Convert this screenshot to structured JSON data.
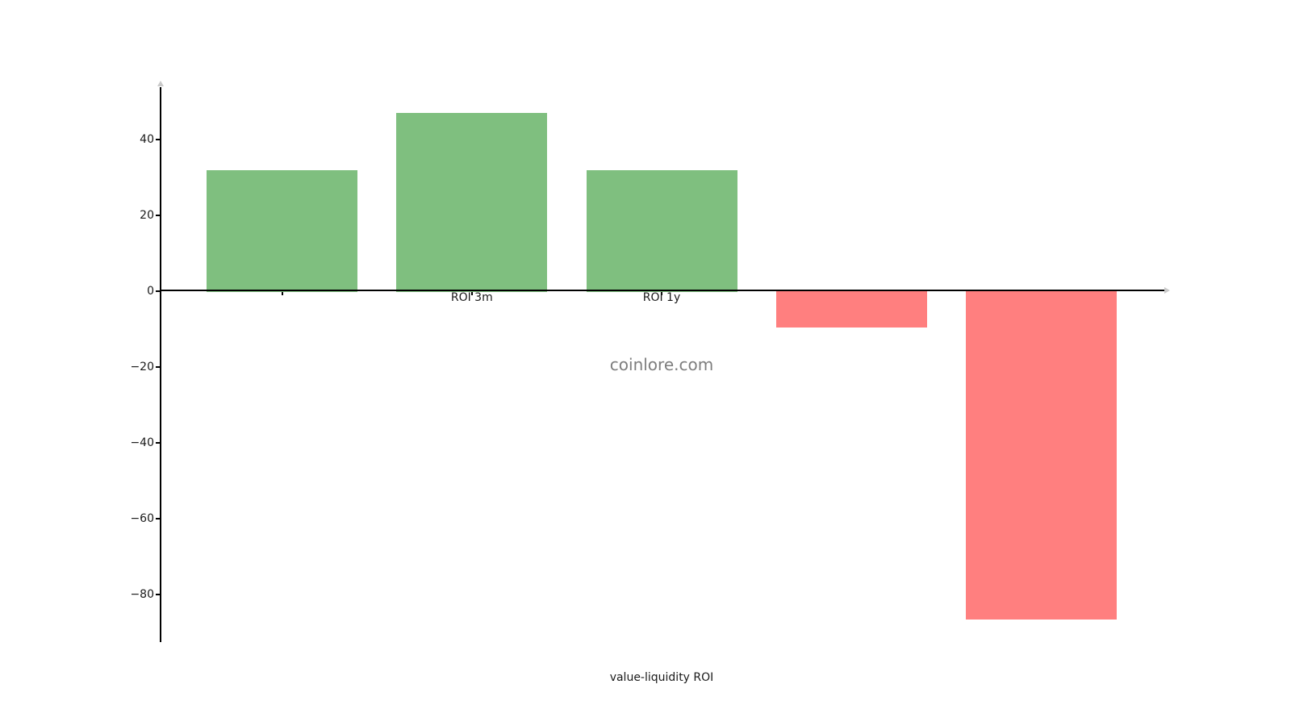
{
  "page": {
    "background": "#ffffff"
  },
  "watermark": {
    "text": "coinlore.com",
    "color": "#7d7d7d"
  },
  "icons": {
    "y_axis_arrow": "arrow-up",
    "x_axis_arrow": "arrow-right"
  },
  "chart_data": {
    "type": "bar",
    "title": "value-liquidity ROI",
    "xlabel": "",
    "ylabel": "",
    "categories": [
      "",
      "ROI 3m",
      "ROI 1y",
      "",
      ""
    ],
    "values": [
      32,
      47,
      32,
      -9.5,
      -86.5
    ],
    "positive_color": "#7fbf7f",
    "negative_color": "#ff7f7f",
    "axis_color": "#000000",
    "text_color": "#1a1a1a",
    "ylim": [
      -93,
      54
    ],
    "yticks": [
      40,
      20,
      0,
      -20,
      -40,
      -60,
      -80
    ],
    "ytick_labels": [
      "40",
      "20",
      "0",
      "−20",
      "−40",
      "−60",
      "−80"
    ],
    "grid": false,
    "legend": "none",
    "baseline": 0
  }
}
